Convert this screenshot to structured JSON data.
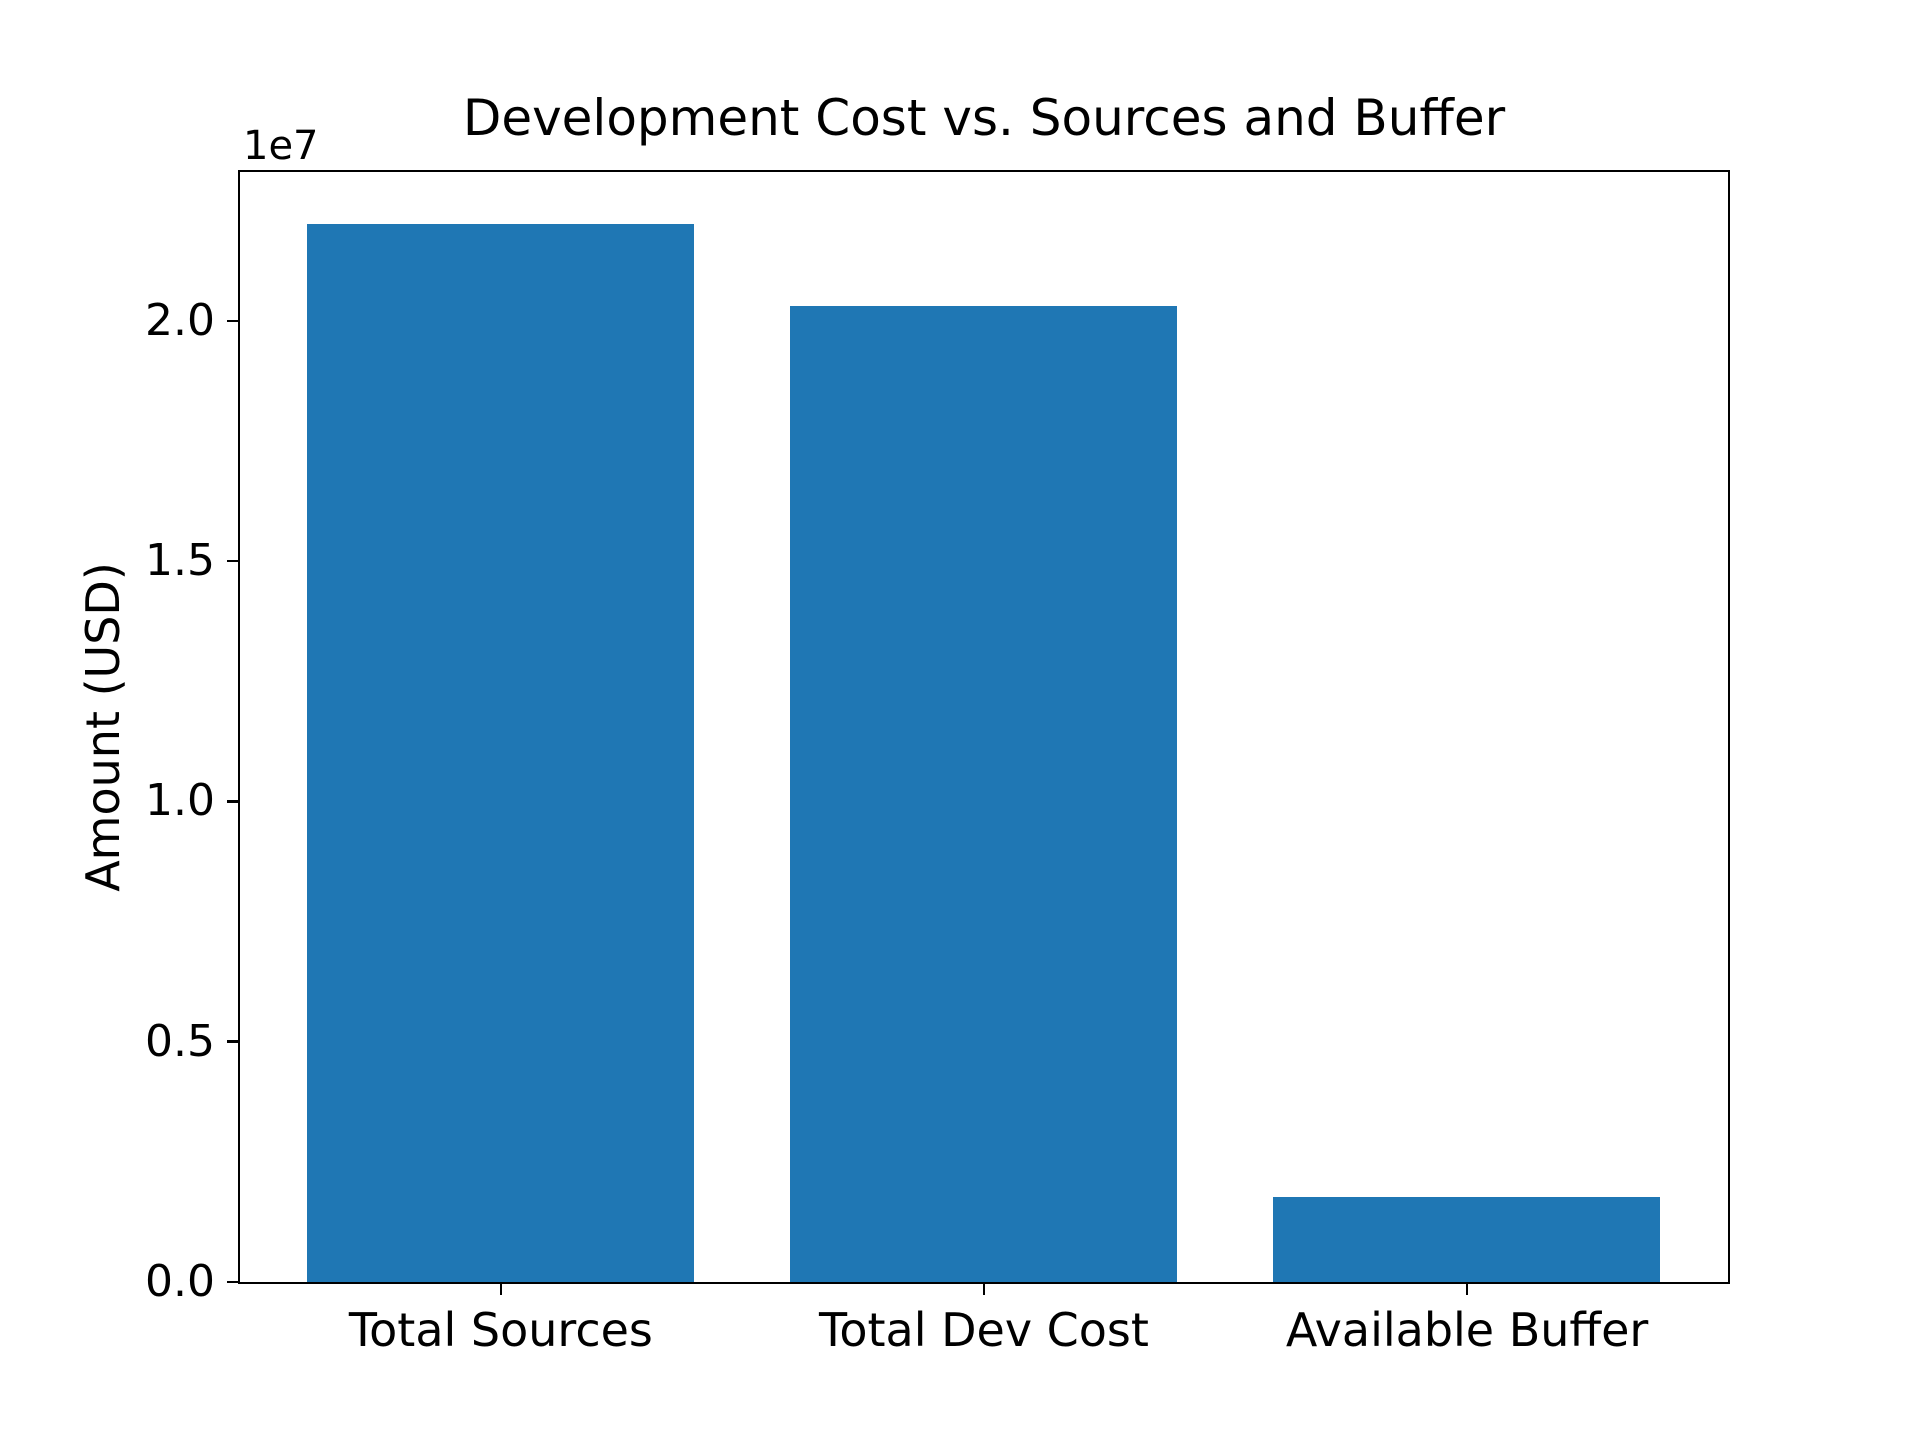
{
  "figure": {
    "background": "#ffffff",
    "text_color": "#000000"
  },
  "chart_data": {
    "type": "bar",
    "title": "Development Cost vs. Sources and Buffer",
    "xlabel": "",
    "ylabel": "Amount (USD)",
    "offset_label": "1e7",
    "categories": [
      "Total Sources",
      "Total Dev Cost",
      "Available Buffer"
    ],
    "values": [
      22000000,
      20300000,
      1750000
    ],
    "bar_color": "#1f77b4",
    "ylim": [
      0,
      23100000
    ],
    "yticks": [
      0,
      5000000,
      10000000,
      15000000,
      20000000
    ],
    "ytick_labels": [
      "0.0",
      "0.5",
      "1.0",
      "1.5",
      "2.0"
    ],
    "grid": false,
    "legend": null,
    "bar_width_fraction": 0.8
  }
}
